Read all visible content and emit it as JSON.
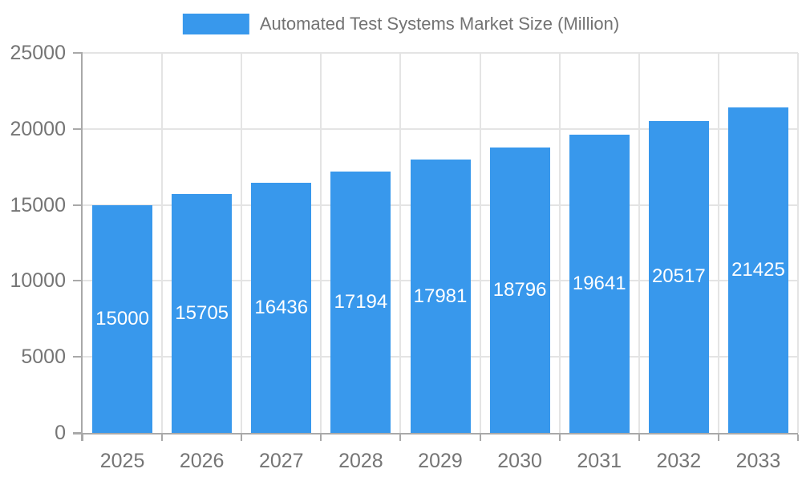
{
  "legend": {
    "label": "Automated Test Systems Market Size (Million)"
  },
  "colors": {
    "bar": "#3898ec",
    "grid": "#e4e4e4",
    "axis": "#a9a9a9",
    "tick_label": "#757575",
    "legend_text": "#737373",
    "value_label": "#ffffff",
    "background": "#ffffff"
  },
  "chart_data": {
    "type": "bar",
    "title": "Automated Test Systems Market Size (Million)",
    "categories": [
      "2025",
      "2026",
      "2027",
      "2028",
      "2029",
      "2030",
      "2031",
      "2032",
      "2033"
    ],
    "values": [
      15000,
      15705,
      16436,
      17194,
      17981,
      18796,
      19641,
      20517,
      21425
    ],
    "xlabel": "",
    "ylabel": "",
    "ylim": [
      0,
      25000
    ],
    "yticks": [
      0,
      5000,
      10000,
      15000,
      20000,
      25000
    ],
    "grid": true,
    "legend_position": "top",
    "value_labels": "inside-center"
  }
}
